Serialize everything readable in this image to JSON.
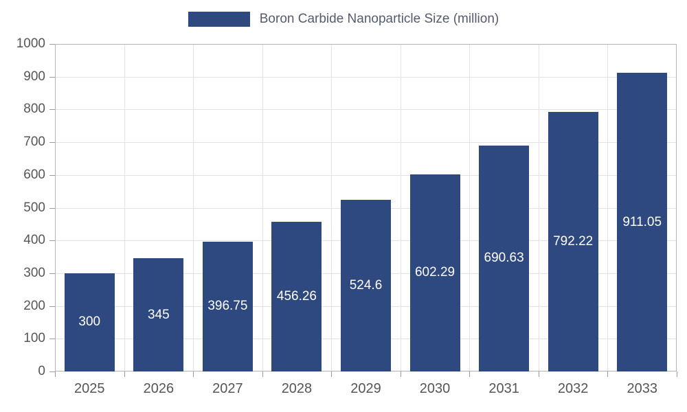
{
  "legend": {
    "label": "Boron Carbide Nanoparticle Size (million)"
  },
  "chart_data": {
    "type": "bar",
    "title": "Boron Carbide Nanoparticle Size (million)",
    "categories": [
      "2025",
      "2026",
      "2027",
      "2028",
      "2029",
      "2030",
      "2031",
      "2032",
      "2033"
    ],
    "values": [
      300,
      345,
      396.75,
      456.26,
      524.6,
      602.29,
      690.63,
      792.22,
      911.05
    ],
    "value_labels": [
      "300",
      "345",
      "396.75",
      "456.26",
      "524.6",
      "602.29",
      "690.63",
      "792.22",
      "911.05"
    ],
    "xlabel": "",
    "ylabel": "",
    "ylim": [
      0,
      1000
    ],
    "ytick_step": 100,
    "ytick_labels": [
      "0",
      "100",
      "200",
      "300",
      "400",
      "500",
      "600",
      "700",
      "800",
      "900",
      "1000"
    ],
    "grid": true,
    "legend_position": "top",
    "colors": {
      "bar": "#2E4880",
      "value_label": "#ffffff",
      "axis_text": "#555555",
      "legend_text": "#555a6e",
      "grid_line": "#e2e2e2",
      "axis_line": "#b3b3b3",
      "tick": "#999999",
      "background": "#ffffff"
    }
  }
}
